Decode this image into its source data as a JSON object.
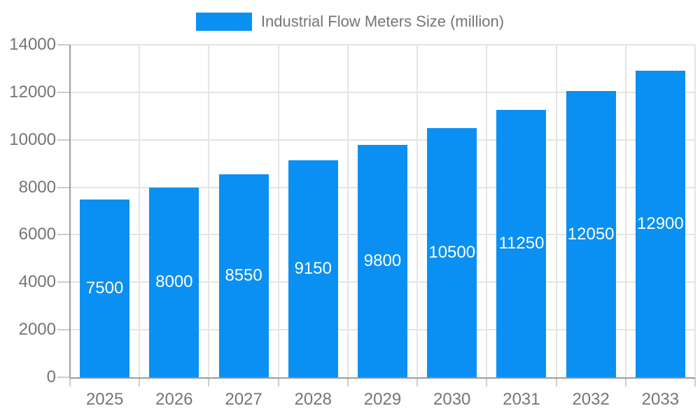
{
  "chart_data": {
    "type": "bar",
    "title": "Industrial Flow Meters Size (million)",
    "categories": [
      "2025",
      "2026",
      "2027",
      "2028",
      "2029",
      "2030",
      "2031",
      "2032",
      "2033"
    ],
    "values": [
      7500,
      8000,
      8550,
      9150,
      9800,
      10500,
      11250,
      12050,
      12900
    ],
    "xlabel": "",
    "ylabel": "",
    "ylim": [
      0,
      14000
    ],
    "y_ticks": [
      0,
      2000,
      4000,
      6000,
      8000,
      10000,
      12000,
      14000
    ],
    "grid": true,
    "legend_position": "top-center",
    "data_labels": "white, centered inside bars",
    "colors": {
      "bar": "#0a90f2",
      "bar_value_text": "#ffffff",
      "axis_line": "#9b9b9b",
      "gridline": "#e4e4e4",
      "tick_mark": "#cccccc",
      "tick_text": "#757575",
      "legend_text": "#757575",
      "background": "#ffffff"
    }
  }
}
